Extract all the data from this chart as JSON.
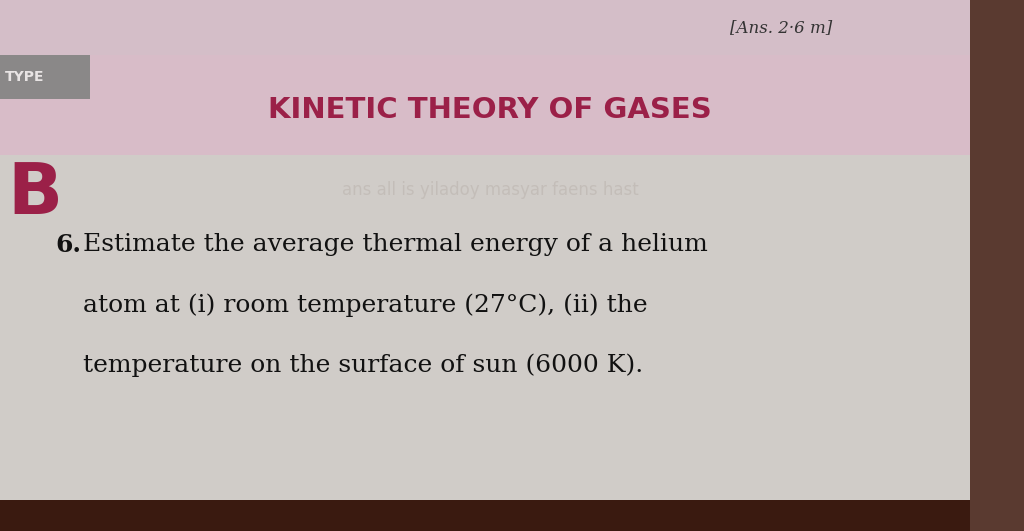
{
  "bg_color": "#d4ceca",
  "page_bg": "#ccc8c3",
  "top_strip_color": "#d8c0c8",
  "header_strip_color": "#dbbec8",
  "header_text": "KINETIC THEORY OF GASES",
  "header_text_color": "#9b2048",
  "header_fontsize": 21,
  "type_box_bg": "#8a8888",
  "type_label": "TYPE",
  "type_text_color": "#e8e4e4",
  "type_fontsize": 10,
  "b_label": "B",
  "b_fontsize": 52,
  "b_color": "#9b2048",
  "ans_text": "[Ans. 2·6 m]",
  "ans_fontsize": 12,
  "ans_color": "#333333",
  "question_number": "6.",
  "question_text_line1": "Estimate the average thermal energy of a helium",
  "question_text_line2": "atom at (i) room temperature (27°C), (ii) the",
  "question_text_line3": "temperature on the surface of sun (6000 K).",
  "question_fontsize": 18,
  "question_color": "#111111",
  "bottom_color": "#3a1a10",
  "right_strip_color": "#5a3a30"
}
